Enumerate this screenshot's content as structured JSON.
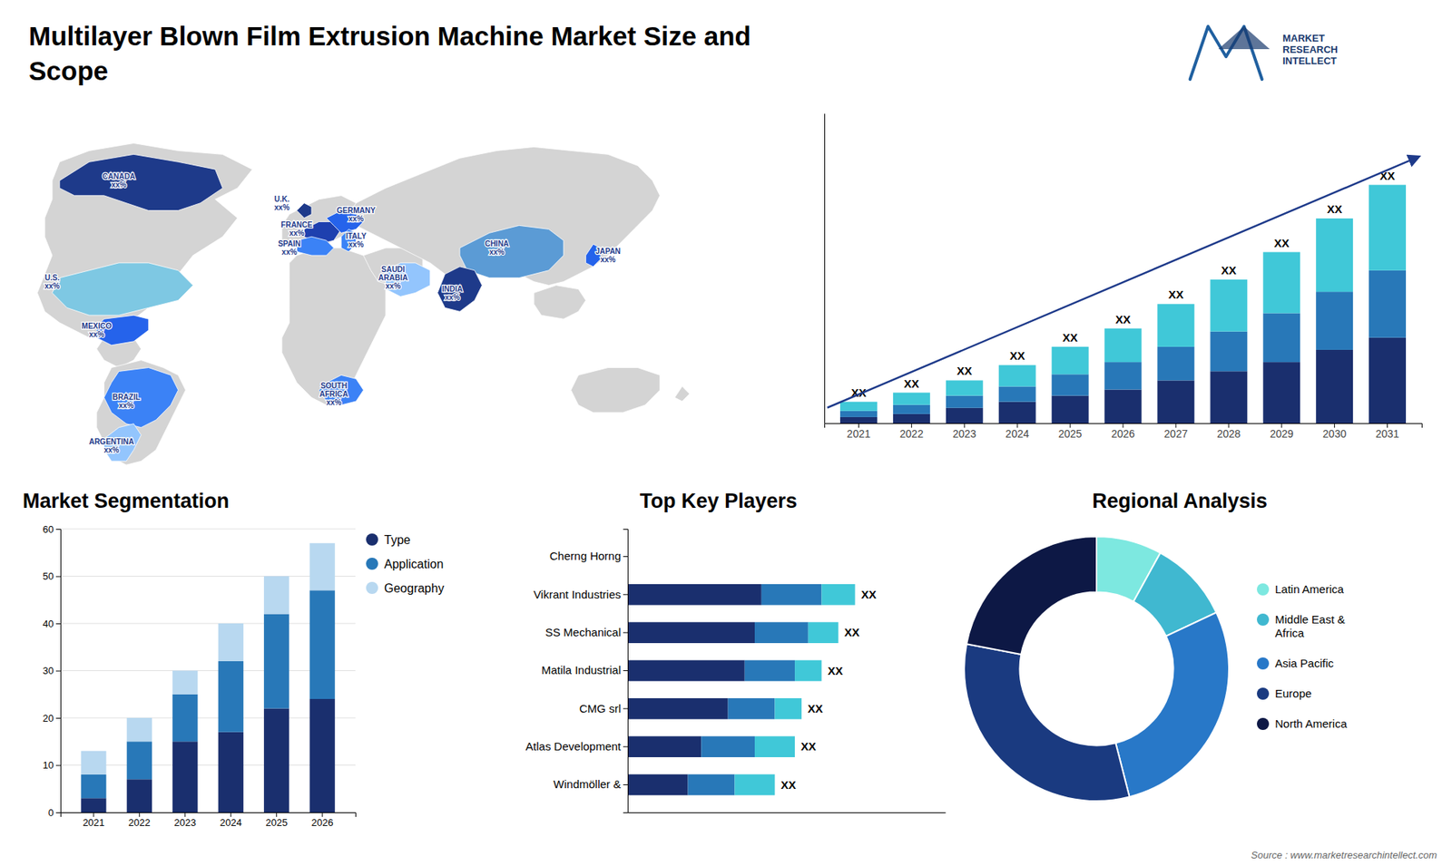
{
  "chart_data": [
    {
      "type": "map",
      "title": "Multilayer Blown Film Extrusion Machine Market Size and\nScope",
      "annotations": [
        "CANADA\nxx%",
        "U.S.\nxx%",
        "MEXICO\nxx%",
        "BRAZIL\nxx%",
        "ARGENTINA\nxx%",
        "U.K.\nxx%",
        "FRANCE\nxx%",
        "GERMANY\nxx%",
        "SPAIN\nxx%",
        "ITALY\nxx%",
        "SAUDI\nARABIA\nxx%",
        "SOUTH\nAFRICA\nxx%",
        "CHINA\nxx%",
        "INDIA\nxx%",
        "JAPAN\nxx%"
      ],
      "colors": [
        "#1e3a8a",
        "#7ec8e3",
        "#2563eb",
        "#3b82f6",
        "#93c5fd",
        "#1e3a8a",
        "#1e40af",
        "#2563eb",
        "#3b82f6",
        "#3b82f6",
        "#93c5fd",
        "#3b82f6",
        "#5b9bd5",
        "#1e3a8a",
        "#2563eb"
      ]
    },
    {
      "type": "bar",
      "stacked": true,
      "categories": [
        "2021",
        "2022",
        "2023",
        "2024",
        "2025",
        "2026",
        "2027",
        "2028",
        "2029",
        "2030",
        "2031"
      ],
      "series": [
        {
          "color": "#1a2f6e",
          "values": [
            2,
            3,
            5,
            7,
            9,
            11,
            14,
            17,
            20,
            24,
            28
          ]
        },
        {
          "color": "#2878b8",
          "values": [
            2,
            3,
            4,
            5,
            7,
            9,
            11,
            13,
            16,
            19,
            22
          ]
        },
        {
          "color": "#40c8d8",
          "values": [
            3,
            4,
            5,
            7,
            9,
            11,
            14,
            17,
            20,
            24,
            28
          ],
          "value_labels": [
            "XX",
            "XX",
            "XX",
            "XX",
            "XX",
            "XX",
            "XX",
            "XX",
            "XX",
            "XX",
            "XX"
          ]
        }
      ],
      "data_labels": true,
      "ylim": [
        0,
        101.4
      ],
      "tick_labels": "x",
      "grid": false,
      "annotations": [
        "MARKET\nRESEARCH\nINTELLECT",
        "Source : www.marketresearchintellect.com"
      ]
    },
    {
      "type": "bar",
      "stacked": true,
      "title": "Market Segmentation",
      "categories": [
        "2021",
        "2022",
        "2023",
        "2024",
        "2025",
        "2026"
      ],
      "series": [
        {
          "name": "Type",
          "color": "#1a2f6e",
          "values": [
            3,
            7,
            15,
            17,
            22,
            24
          ]
        },
        {
          "name": "Application",
          "color": "#2878b8",
          "values": [
            5,
            8,
            10,
            15,
            20,
            23
          ]
        },
        {
          "name": "Geography",
          "color": "#b8d8f0",
          "values": [
            5,
            5,
            5,
            8,
            8,
            10
          ]
        }
      ],
      "ylim": [
        0,
        60
      ],
      "yticks": [
        0,
        10,
        20,
        30,
        40,
        50,
        60
      ],
      "grid": true,
      "legend": "right"
    },
    {
      "type": "bar",
      "stacked": true,
      "orientation": "horizontal",
      "title": "Top Key Players",
      "categories": [
        "Cherng Horng",
        "Vikrant Industries",
        "SS Mechanical",
        "Matila Industrial",
        "CMG srl",
        "Atlas Development",
        "Windmöller &"
      ],
      "series": [
        {
          "color": "#1a2f6e",
          "values": [
            0,
            40,
            38,
            35,
            30,
            22,
            18
          ]
        },
        {
          "color": "#2878b8",
          "values": [
            0,
            18,
            16,
            15,
            14,
            16,
            14
          ]
        },
        {
          "color": "#40c8d8",
          "values": [
            0,
            10,
            9,
            8,
            8,
            12,
            12
          ],
          "value_labels": [
            null,
            "XX",
            "XX",
            "XX",
            "XX",
            "XX",
            "XX"
          ]
        }
      ],
      "data_labels": true,
      "xlim": [
        0,
        95
      ],
      "tick_labels": "y",
      "grid": false
    },
    {
      "type": "pie",
      "title": "Regional Analysis",
      "categories": [
        "Latin America",
        "Middle East &\nAfrica",
        "Asia Pacific",
        "Europe",
        "North America"
      ],
      "values": [
        8,
        10,
        28,
        32,
        22
      ],
      "colors": [
        "#7de8e0",
        "#40b8d0",
        "#2878c8",
        "#1a3a80",
        "#0d1845"
      ],
      "legend": "right"
    }
  ]
}
